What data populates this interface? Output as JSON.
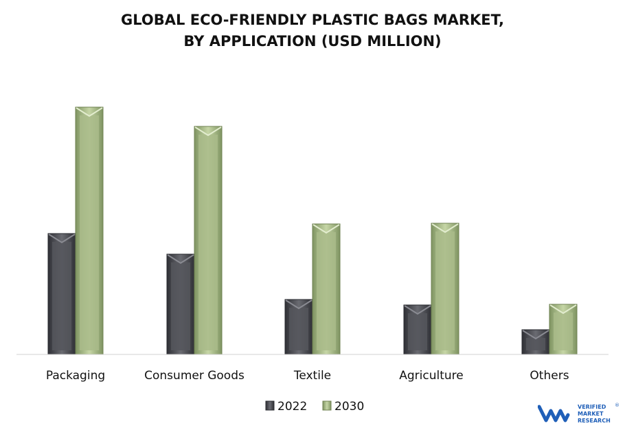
{
  "chart_data": {
    "type": "bar",
    "title": "GLOBAL ECO-FRIENDLY PLASTIC BAGS MARKET,",
    "subtitle": "BY APPLICATION (USD MILLION)",
    "categories": [
      "Packaging",
      "Consumer Goods",
      "Textile",
      "Agriculture",
      "Others"
    ],
    "series": [
      {
        "name": "2022",
        "values": [
          176,
          146,
          80,
          72,
          36
        ],
        "color": "#55565c"
      },
      {
        "name": "2030",
        "values": [
          360,
          332,
          190,
          191,
          73
        ],
        "color": "#a9bb8a"
      }
    ],
    "ylim": [
      0,
      380
    ],
    "xlabel": "",
    "ylabel": "",
    "grid": false,
    "legend": "bottom-center"
  },
  "branding": {
    "logo_text": [
      "VERIFIED",
      "MARKET",
      "RESEARCH"
    ],
    "logo_color": "#1f5fb8",
    "registered_mark": "®"
  }
}
